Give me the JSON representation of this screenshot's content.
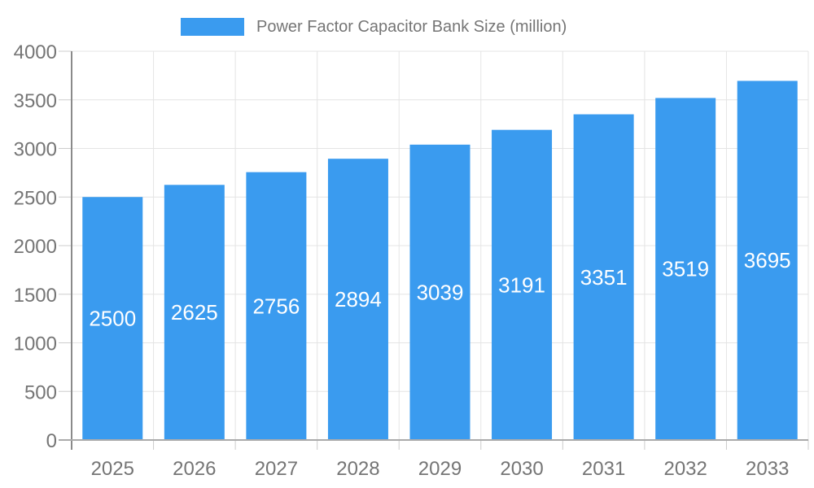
{
  "chart_data": {
    "type": "bar",
    "title": "Power Factor Capacitor Bank Size (million)",
    "categories": [
      "2025",
      "2026",
      "2027",
      "2028",
      "2029",
      "2030",
      "2031",
      "2032",
      "2033"
    ],
    "values": [
      2500,
      2625,
      2756,
      2894,
      3039,
      3191,
      3351,
      3519,
      3695
    ],
    "xlabel": "",
    "ylabel": "",
    "ylim": [
      0,
      4000
    ],
    "yticks": [
      0,
      500,
      1000,
      1500,
      2000,
      2500,
      3000,
      3500,
      4000
    ],
    "grid": true,
    "legend_position": "top",
    "value_labels": "inside-center",
    "series_color": "#3a9bef",
    "tick_label_color": "#757575",
    "bar_label_color": "#ffffff",
    "grid_color": "#e4e4e4",
    "y_axis_line_color": "#8a8a8a",
    "x_axis_line_color": "#ababab",
    "tick_mark_color": "#cccccc",
    "background_color": "#ffffff"
  }
}
